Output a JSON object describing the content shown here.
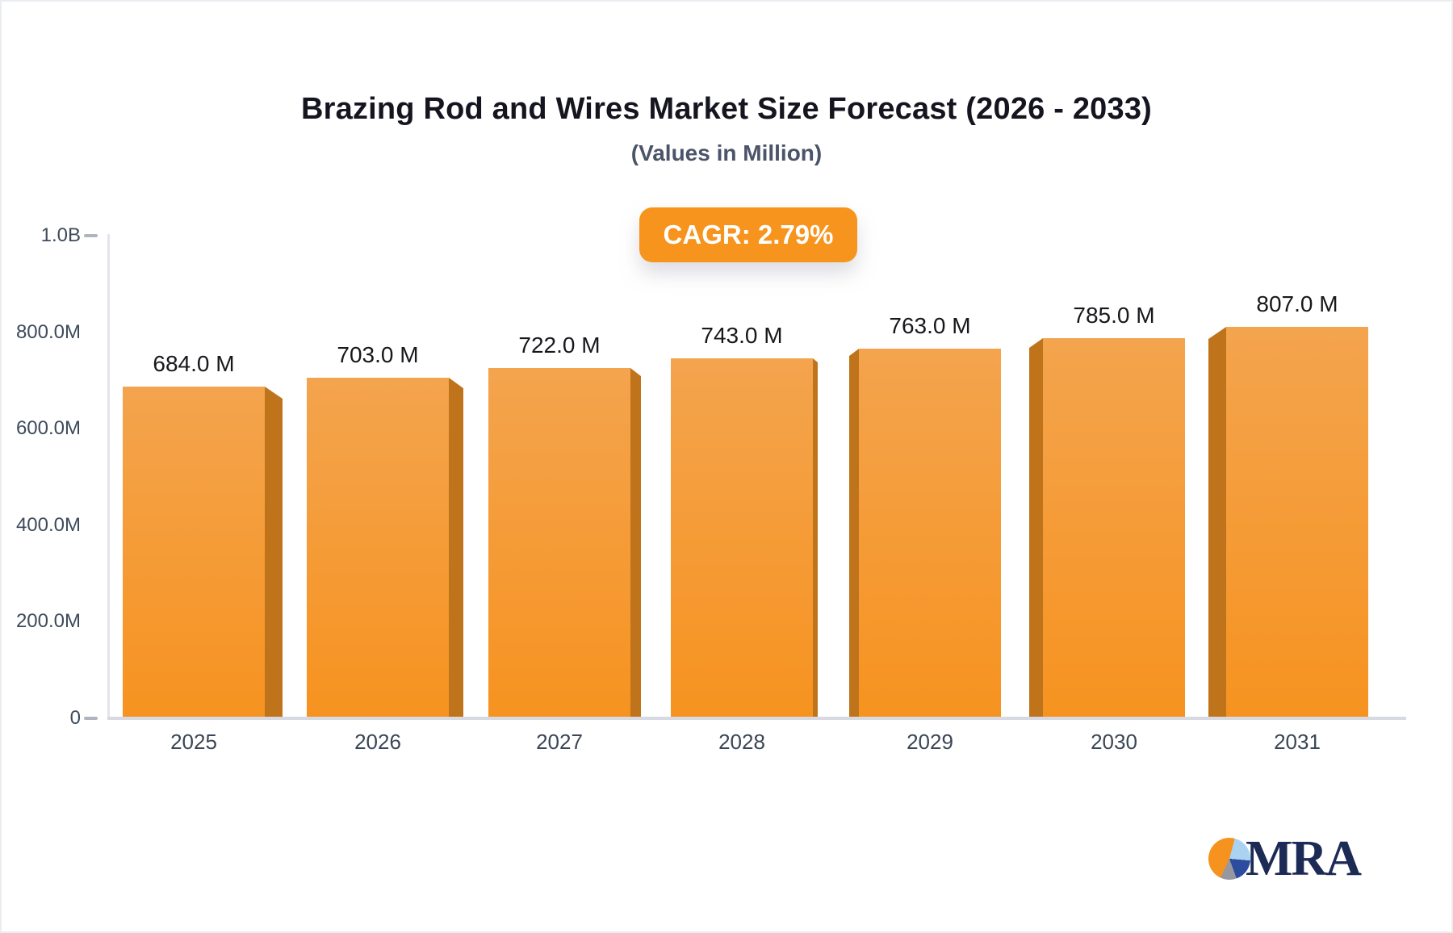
{
  "header": {
    "title": "Brazing Rod and Wires Market Size Forecast (2026 - 2033)",
    "subtitle": "(Values in Million)"
  },
  "badge": {
    "label": "CAGR: 2.79%"
  },
  "chart_data": {
    "type": "bar",
    "title": "Brazing Rod and Wires Market Size Forecast (2026 - 2033)",
    "subtitle": "(Values in Million)",
    "categories": [
      "2025",
      "2026",
      "2027",
      "2028",
      "2029",
      "2030",
      "2031"
    ],
    "values": [
      684,
      703,
      722,
      743,
      763,
      785,
      807
    ],
    "value_labels": [
      "684.0 M",
      "703.0 M",
      "722.0 M",
      "743.0 M",
      "763.0 M",
      "785.0 M",
      "807.0 M"
    ],
    "xlabel": "",
    "ylabel": "",
    "ylim": [
      0,
      1000
    ],
    "yticks": [
      {
        "label": "1.0B",
        "value": 1000
      },
      {
        "label": "800.0M",
        "value": 800
      },
      {
        "label": "600.0M",
        "value": 600
      },
      {
        "label": "400.0M",
        "value": 400
      },
      {
        "label": "200.0M",
        "value": 200
      },
      {
        "label": "0",
        "value": 0
      }
    ],
    "grid": false,
    "legend": false,
    "annotations": [
      "CAGR: 2.79%"
    ]
  },
  "logo": {
    "text": "MRA"
  },
  "colors": {
    "bar_face_top": "#F4A44E",
    "bar_face_bottom": "#F69320",
    "bar_side": "#BF741C",
    "badge_bg": "#F7941E",
    "badge_text": "#FFFFFF",
    "title": "#15151F",
    "subtitle": "#4B5468",
    "axis_label": "#3E4A5C",
    "logo_navy": "#1C2A56",
    "logo_orange": "#F6921E"
  }
}
